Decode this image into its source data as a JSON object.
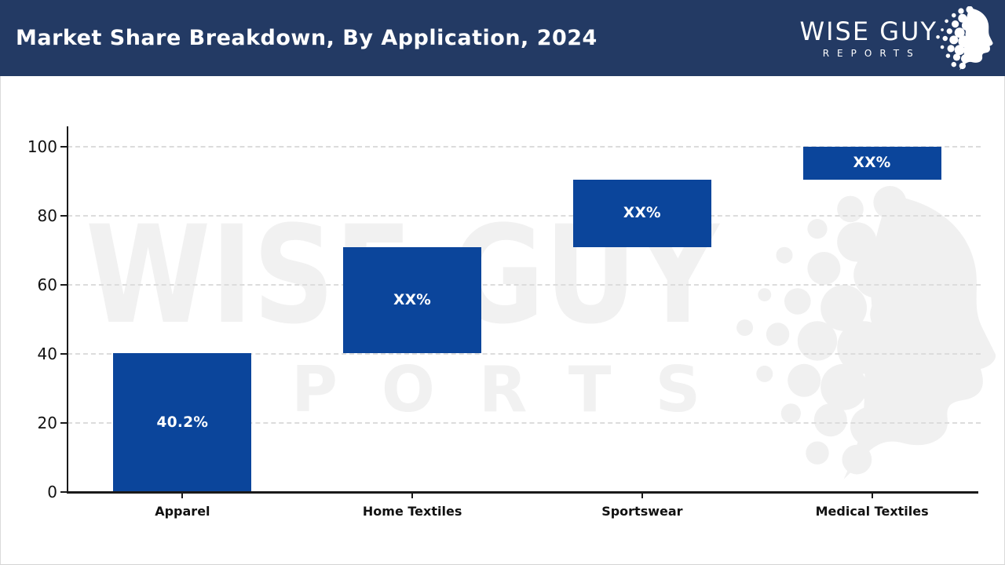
{
  "header": {
    "title": "Market Share Breakdown, By Application, 2024",
    "logo": {
      "line1": "WISE GUY",
      "line2": "REPORTS"
    }
  },
  "watermark": {
    "line1": "WISE GUY",
    "line2": "REPORTS"
  },
  "colors": {
    "header_bg": "#233a64",
    "bar": "#0b459b",
    "bar_label": "#ffffff",
    "axis": "#1a1a1a",
    "gridline": "#dcdcdc",
    "watermark": "#f1f1f1"
  },
  "chart_data": {
    "type": "bar",
    "subtype": "waterfall",
    "title": "Market Share Breakdown, By Application, 2024",
    "categories": [
      "Apparel",
      "Home Textiles",
      "Sportswear",
      "Medical Textiles"
    ],
    "segments": [
      {
        "category": "Apparel",
        "start": 0,
        "end": 40.2,
        "label": "40.2%"
      },
      {
        "category": "Home Textiles",
        "start": 40.2,
        "end": 71,
        "label": "XX%"
      },
      {
        "category": "Sportswear",
        "start": 71,
        "end": 90.5,
        "label": "XX%"
      },
      {
        "category": "Medical Textiles",
        "start": 90.5,
        "end": 100,
        "label": "XX%"
      }
    ],
    "xlabel": "",
    "ylabel": "",
    "yticks": [
      0,
      20,
      40,
      60,
      80,
      100
    ],
    "ylim": [
      0,
      105
    ],
    "grid": "horizontal-dashed",
    "legend": "none"
  }
}
